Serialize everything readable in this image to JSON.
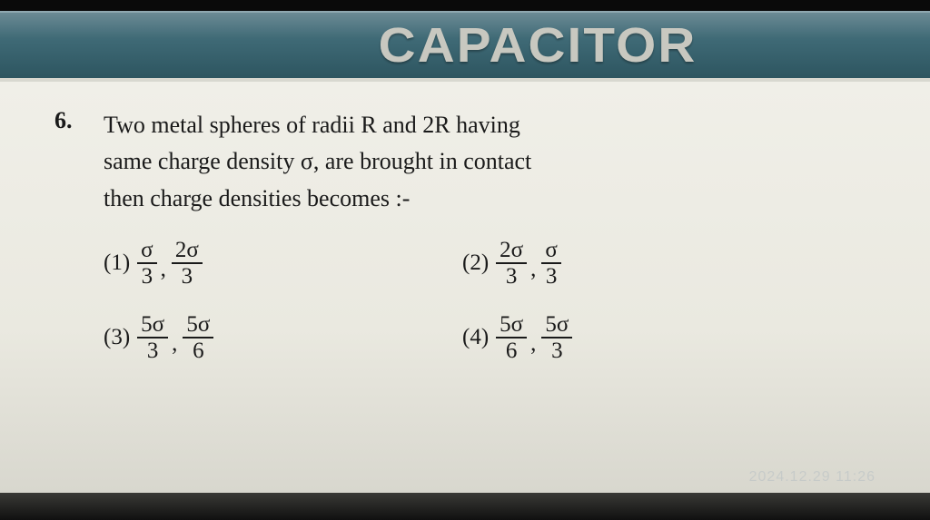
{
  "header": {
    "title": "CAPACITOR"
  },
  "question": {
    "number": "6.",
    "line1": "Two metal spheres of radii R and 2R having",
    "line2": "same charge density σ, are brought in contact",
    "line3": "then charge densities becomes :-"
  },
  "options": {
    "o1": {
      "label": "(1)",
      "n1": "σ",
      "d1": "3",
      "n2": "2σ",
      "d2": "3"
    },
    "o2": {
      "label": "(2)",
      "n1": "2σ",
      "d1": "3",
      "n2": "σ",
      "d2": "3"
    },
    "o3": {
      "label": "(3)",
      "n1": "5σ",
      "d1": "3",
      "n2": "5σ",
      "d2": "6"
    },
    "o4": {
      "label": "(4)",
      "n1": "5σ",
      "d1": "6",
      "n2": "5σ",
      "d2": "3"
    }
  },
  "timestamp": "2024.12.29 11:26",
  "colors": {
    "header_band_top": "#6b8a94",
    "header_band_mid": "#3f6a76",
    "header_band_bottom": "#2d5560",
    "header_text": "#c8c8c0",
    "paper_bg": "#eae9e0",
    "text": "#1a1a1a",
    "timestamp": "#b8c0c4"
  },
  "typography": {
    "header_fontsize_pt": 40,
    "body_fontsize_pt": 19,
    "option_fontsize_pt": 18
  }
}
